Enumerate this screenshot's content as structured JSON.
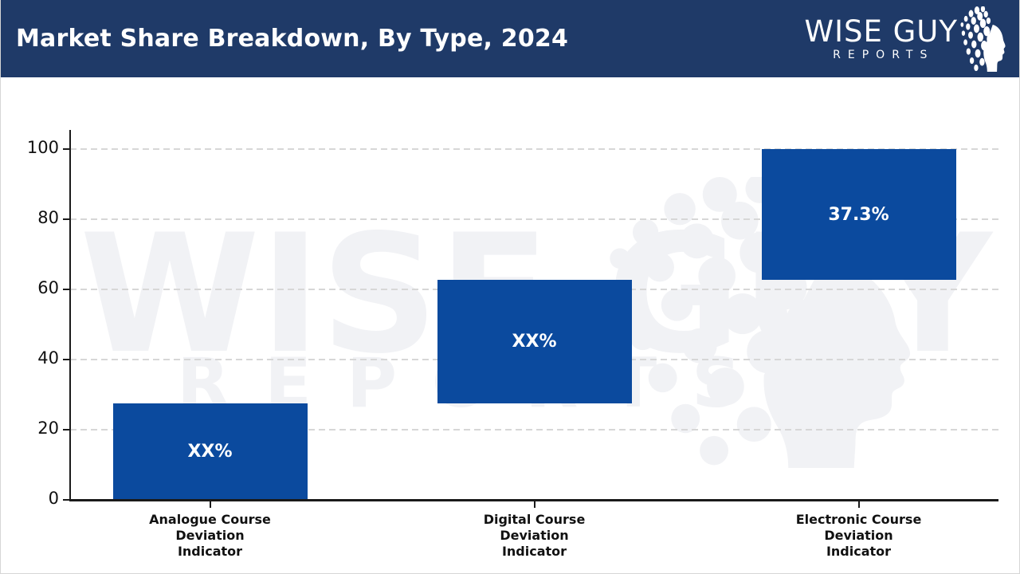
{
  "header": {
    "title": "Market Share Breakdown, By Type, 2024",
    "logo": {
      "line1": "WISE GUY",
      "line2": "REPORTS"
    }
  },
  "watermark": {
    "line1": "WISE GUY",
    "line2": "REPORTS"
  },
  "chart_data": {
    "type": "bar",
    "subtype": "floating-waterfall-segments",
    "title": "Market Share Breakdown, By Type, 2024",
    "categories": [
      [
        "Analogue Course",
        "Deviation",
        "Indicator"
      ],
      [
        "Digital Course",
        "Deviation",
        "Indicator"
      ],
      [
        "Electronic Course",
        "Deviation",
        "Indicator"
      ]
    ],
    "segments": [
      {
        "start": 0,
        "end": 27.5,
        "value": 27.5,
        "label": "XX%"
      },
      {
        "start": 27.5,
        "end": 62.7,
        "value": 35.2,
        "label": "XX%"
      },
      {
        "start": 62.7,
        "end": 100,
        "value": 37.3,
        "label": "37.3%"
      }
    ],
    "xlabel": "",
    "ylabel": "",
    "ylim": [
      0,
      100
    ],
    "yticks": [
      0,
      20,
      40,
      60,
      80,
      100
    ],
    "grid": "horizontal-dashed",
    "legend": "none",
    "bar_color": "#0b4a9e",
    "bar_label_color": "#ffffff",
    "axis_color": "#1a1a1a",
    "grid_color": "#d7d7d7"
  },
  "colors": {
    "header_bg": "#1f3a68",
    "page_bg": "#ffffff",
    "watermark": "#f1f2f5",
    "text": "#111111"
  }
}
